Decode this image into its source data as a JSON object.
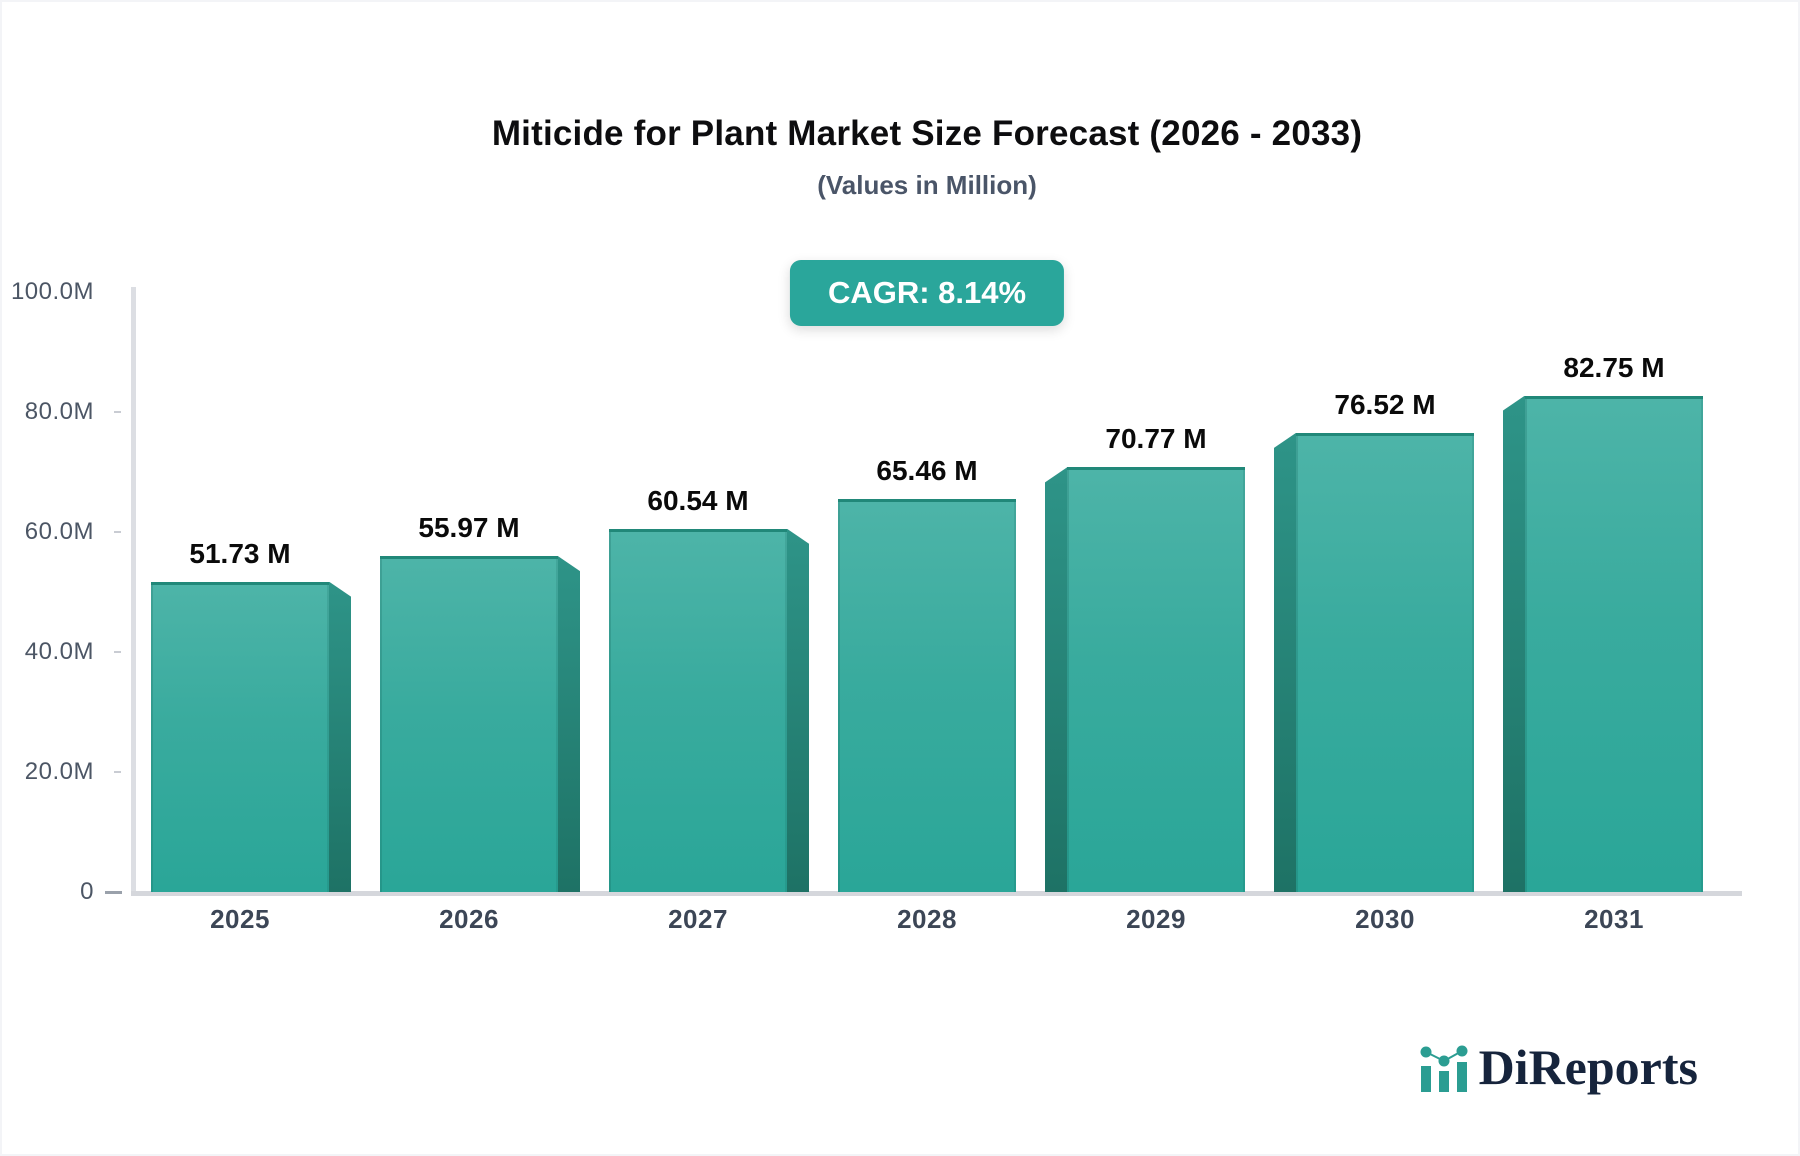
{
  "header": {
    "title": "Miticide for Plant Market Size Forecast (2026 - 2033)",
    "subtitle": "(Values in Million)",
    "cagr_badge": "CAGR: 8.14%"
  },
  "chart_data": {
    "type": "bar",
    "title": "Miticide for Plant Market Size Forecast (2026 - 2033)",
    "subtitle": "(Values in Million)",
    "categories": [
      "2025",
      "2026",
      "2027",
      "2028",
      "2029",
      "2030",
      "2031"
    ],
    "values": [
      51.73,
      55.97,
      60.54,
      65.46,
      70.77,
      76.52,
      82.75
    ],
    "value_labels": [
      "51.73 M",
      "55.97 M",
      "60.54 M",
      "65.46 M",
      "70.77 M",
      "76.52 M",
      "82.75 M"
    ],
    "cagr_percent": 8.14,
    "xlabel": "",
    "ylabel": "",
    "ylim": [
      0,
      100
    ],
    "yticks": [
      {
        "value": 100,
        "label": "100.0M"
      },
      {
        "value": 80,
        "label": "80.0M"
      },
      {
        "value": 60,
        "label": "60.0M"
      },
      {
        "value": 40,
        "label": "40.0M"
      },
      {
        "value": 20,
        "label": "20.0M"
      },
      {
        "value": 0,
        "label": "0"
      }
    ],
    "grid": false,
    "legend": false,
    "bar_style": "3d-perspective",
    "colors": {
      "bar_top": "#4db4a8",
      "bar_bottom": "#2aa698",
      "bar_side_dark": "#1e7265",
      "bar_top_border": "#218879",
      "accent_badge": "#2aa69b",
      "axis_line": "#d5d7dc",
      "tick_text": "#4c5665",
      "category_text": "#3c4656",
      "value_text": "#0a0a0a"
    }
  },
  "branding": {
    "logo_text": "DiReports",
    "logo_icon": "mini-bar-chart-icon",
    "logo_text_color": "#16243c",
    "logo_icon_color": "#2b9d92"
  }
}
